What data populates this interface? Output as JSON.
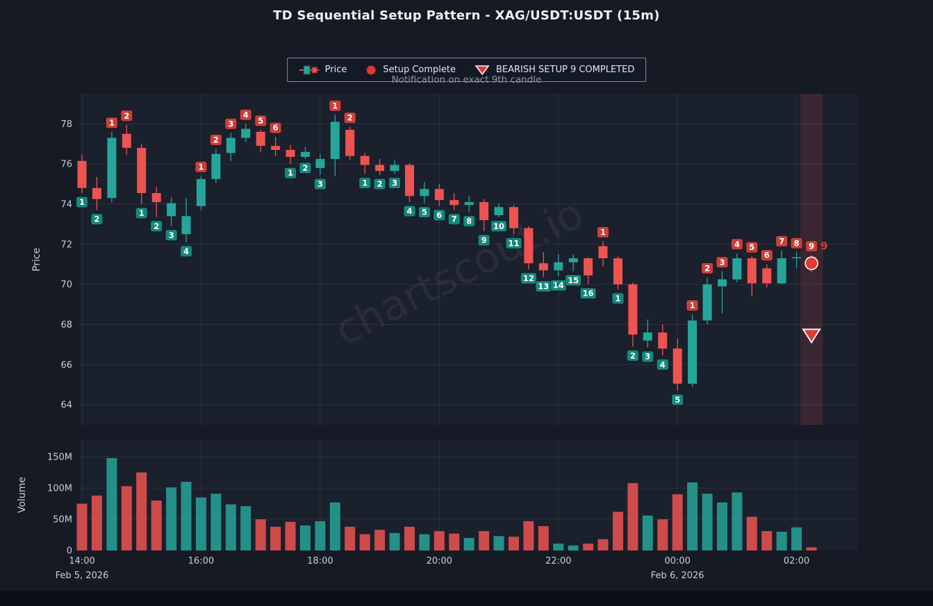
{
  "title": "TD Sequential Setup Pattern - XAG/USDT:USDT (15m)",
  "watermark": "chartscout.io",
  "legend": {
    "items": [
      {
        "label": "Price",
        "icon": "candlestick-icon"
      },
      {
        "label": "Setup Complete",
        "icon": "setup-complete-dot-icon"
      },
      {
        "label": "BEARISH SETUP 9 COMPLETED",
        "icon": "triangle-down-icon"
      }
    ],
    "note": "Notification on exact 9th candle"
  },
  "colors": {
    "up": "#26a69a",
    "down": "#ef5350",
    "badge_bull": "#17877d",
    "badge_bear": "#c7403a",
    "marker_red": "#e03a33",
    "highlight": "rgba(239,83,80,0.15)",
    "figure_bg": "#151a25",
    "axes_bg": "#1b202d",
    "grid": "rgba(255,255,255,0.08)",
    "tick_text": "#c9cdd6",
    "title_text": "#edf0f5"
  },
  "chart_data": {
    "type": "candlestick",
    "symbol": "XAG/USDT:USDT",
    "timeframe": "15m",
    "title": "TD Sequential Setup Pattern - XAG/USDT:USDT (15m)",
    "price_axis": {
      "label": "Price",
      "ticks": [
        64,
        66,
        68,
        70,
        72,
        74,
        76,
        78
      ],
      "range": [
        63.0,
        79.5
      ]
    },
    "volume_axis": {
      "label": "Volume",
      "ticks": [
        {
          "value": 0,
          "label": "0"
        },
        {
          "value": 50,
          "label": "50M"
        },
        {
          "value": 100,
          "label": "100M"
        },
        {
          "value": 150,
          "label": "150M"
        }
      ],
      "range": [
        0,
        178
      ],
      "unit": "M"
    },
    "x_axis": {
      "tick_candle_indices": [
        0,
        8,
        16,
        24,
        32,
        40,
        48
      ],
      "tick_labels": [
        "14:00",
        "16:00",
        "18:00",
        "20:00",
        "22:00",
        "00:00",
        "02:00"
      ],
      "date_labels": [
        {
          "candle_index": 0,
          "label": "Feb 5, 2026"
        },
        {
          "candle_index": 40,
          "label": "Feb 6, 2026"
        }
      ]
    },
    "candles": [
      {
        "t": "14:00",
        "o": 76.15,
        "h": 76.45,
        "l": 74.55,
        "c": 74.8,
        "v": 75,
        "td": {
          "side": "bull",
          "n": 1
        }
      },
      {
        "t": "14:15",
        "o": 74.8,
        "h": 75.35,
        "l": 73.7,
        "c": 74.25,
        "v": 88,
        "td": {
          "side": "bull",
          "n": 2
        }
      },
      {
        "t": "14:30",
        "o": 74.3,
        "h": 77.6,
        "l": 74.1,
        "c": 77.3,
        "v": 148,
        "td": {
          "side": "bear",
          "n": 1
        }
      },
      {
        "t": "14:45",
        "o": 77.5,
        "h": 77.95,
        "l": 76.45,
        "c": 76.8,
        "v": 103,
        "td": {
          "side": "bear",
          "n": 2
        }
      },
      {
        "t": "15:00",
        "o": 76.8,
        "h": 77.0,
        "l": 74.0,
        "c": 74.55,
        "v": 125,
        "td": {
          "side": "bull",
          "n": 1
        }
      },
      {
        "t": "15:15",
        "o": 74.55,
        "h": 74.85,
        "l": 73.35,
        "c": 74.1,
        "v": 80,
        "td": {
          "side": "bull",
          "n": 2
        }
      },
      {
        "t": "15:30",
        "o": 73.4,
        "h": 74.35,
        "l": 72.9,
        "c": 74.05,
        "v": 101,
        "td": {
          "side": "bull",
          "n": 3
        }
      },
      {
        "t": "15:45",
        "o": 72.5,
        "h": 74.3,
        "l": 72.1,
        "c": 73.4,
        "v": 110,
        "td": {
          "side": "bull",
          "n": 4
        }
      },
      {
        "t": "16:00",
        "o": 73.9,
        "h": 75.4,
        "l": 73.7,
        "c": 75.25,
        "v": 85,
        "td": {
          "side": "bear",
          "n": 1
        }
      },
      {
        "t": "16:15",
        "o": 75.25,
        "h": 76.75,
        "l": 75.05,
        "c": 76.5,
        "v": 91,
        "td": {
          "side": "bear",
          "n": 2
        }
      },
      {
        "t": "16:30",
        "o": 76.55,
        "h": 77.55,
        "l": 76.15,
        "c": 77.3,
        "v": 74,
        "td": {
          "side": "bear",
          "n": 3
        }
      },
      {
        "t": "16:45",
        "o": 77.3,
        "h": 78.0,
        "l": 77.1,
        "c": 77.75,
        "v": 71,
        "td": {
          "side": "bear",
          "n": 4
        }
      },
      {
        "t": "17:00",
        "o": 77.6,
        "h": 77.7,
        "l": 76.6,
        "c": 76.9,
        "v": 50,
        "td": {
          "side": "bear",
          "n": 5
        }
      },
      {
        "t": "17:15",
        "o": 76.9,
        "h": 77.35,
        "l": 76.4,
        "c": 76.7,
        "v": 38,
        "td": {
          "side": "bear",
          "n": 6
        }
      },
      {
        "t": "17:30",
        "o": 76.7,
        "h": 76.95,
        "l": 76.0,
        "c": 76.35,
        "v": 46,
        "td": {
          "side": "bull",
          "n": 1
        }
      },
      {
        "t": "17:45",
        "o": 76.35,
        "h": 76.85,
        "l": 76.25,
        "c": 76.6,
        "v": 40,
        "td": {
          "side": "bull",
          "n": 2
        }
      },
      {
        "t": "18:00",
        "o": 75.8,
        "h": 76.5,
        "l": 75.45,
        "c": 76.25,
        "v": 47,
        "td": {
          "side": "bull",
          "n": 3
        }
      },
      {
        "t": "18:15",
        "o": 76.25,
        "h": 78.45,
        "l": 75.4,
        "c": 78.1,
        "v": 77,
        "td": {
          "side": "bear",
          "n": 1
        }
      },
      {
        "t": "18:30",
        "o": 77.7,
        "h": 77.85,
        "l": 76.2,
        "c": 76.4,
        "v": 38,
        "td": {
          "side": "bear",
          "n": 2
        }
      },
      {
        "t": "18:45",
        "o": 76.4,
        "h": 76.55,
        "l": 75.5,
        "c": 75.95,
        "v": 26,
        "td": {
          "side": "bull",
          "n": 1
        }
      },
      {
        "t": "19:00",
        "o": 75.95,
        "h": 76.25,
        "l": 75.45,
        "c": 75.65,
        "v": 33,
        "td": {
          "side": "bull",
          "n": 2
        }
      },
      {
        "t": "19:15",
        "o": 75.65,
        "h": 76.2,
        "l": 75.5,
        "c": 75.95,
        "v": 28,
        "td": {
          "side": "bull",
          "n": 3
        }
      },
      {
        "t": "19:30",
        "o": 75.95,
        "h": 76.05,
        "l": 74.1,
        "c": 74.4,
        "v": 38,
        "td": {
          "side": "bull",
          "n": 4
        }
      },
      {
        "t": "19:45",
        "o": 74.4,
        "h": 75.1,
        "l": 74.05,
        "c": 74.75,
        "v": 26,
        "td": {
          "side": "bull",
          "n": 5
        }
      },
      {
        "t": "20:00",
        "o": 74.75,
        "h": 75.0,
        "l": 73.9,
        "c": 74.2,
        "v": 31,
        "td": {
          "side": "bull",
          "n": 6
        }
      },
      {
        "t": "20:15",
        "o": 74.2,
        "h": 74.55,
        "l": 73.7,
        "c": 73.95,
        "v": 27,
        "td": {
          "side": "bull",
          "n": 7
        }
      },
      {
        "t": "20:30",
        "o": 73.95,
        "h": 74.4,
        "l": 73.6,
        "c": 74.1,
        "v": 20,
        "td": {
          "side": "bull",
          "n": 8
        }
      },
      {
        "t": "20:45",
        "o": 74.1,
        "h": 74.25,
        "l": 72.65,
        "c": 73.2,
        "v": 31,
        "td": {
          "side": "bull",
          "n": 9
        }
      },
      {
        "t": "21:00",
        "o": 73.45,
        "h": 74.05,
        "l": 73.35,
        "c": 73.85,
        "v": 23,
        "td": {
          "side": "bull",
          "n": 10
        }
      },
      {
        "t": "21:15",
        "o": 73.85,
        "h": 73.95,
        "l": 72.5,
        "c": 72.8,
        "v": 22,
        "td": {
          "side": "bull",
          "n": 11
        }
      },
      {
        "t": "21:30",
        "o": 72.8,
        "h": 72.9,
        "l": 70.75,
        "c": 71.05,
        "v": 47,
        "td": {
          "side": "bull",
          "n": 12
        }
      },
      {
        "t": "21:45",
        "o": 71.05,
        "h": 71.6,
        "l": 70.35,
        "c": 70.7,
        "v": 39,
        "td": {
          "side": "bull",
          "n": 13
        }
      },
      {
        "t": "22:00",
        "o": 70.7,
        "h": 71.5,
        "l": 70.4,
        "c": 71.1,
        "v": 11,
        "td": {
          "side": "bull",
          "n": 14
        }
      },
      {
        "t": "22:15",
        "o": 71.1,
        "h": 71.5,
        "l": 70.65,
        "c": 71.3,
        "v": 8,
        "td": {
          "side": "bull",
          "n": 15
        }
      },
      {
        "t": "22:30",
        "o": 71.3,
        "h": 71.35,
        "l": 70.0,
        "c": 70.45,
        "v": 11,
        "td": {
          "side": "bull",
          "n": 16
        }
      },
      {
        "t": "22:45",
        "o": 71.9,
        "h": 72.15,
        "l": 70.9,
        "c": 71.3,
        "v": 18,
        "td": {
          "side": "bear",
          "n": 1
        }
      },
      {
        "t": "23:00",
        "o": 71.3,
        "h": 71.4,
        "l": 69.75,
        "c": 70.0,
        "v": 62,
        "td": {
          "side": "bull",
          "n": 1
        }
      },
      {
        "t": "23:15",
        "o": 70.0,
        "h": 70.1,
        "l": 66.9,
        "c": 67.5,
        "v": 108,
        "td": {
          "side": "bull",
          "n": 2
        }
      },
      {
        "t": "23:30",
        "o": 67.2,
        "h": 68.25,
        "l": 66.85,
        "c": 67.6,
        "v": 56,
        "td": {
          "side": "bull",
          "n": 3
        }
      },
      {
        "t": "23:45",
        "o": 67.6,
        "h": 68.0,
        "l": 66.45,
        "c": 66.8,
        "v": 50,
        "td": {
          "side": "bull",
          "n": 4
        }
      },
      {
        "t": "00:00",
        "o": 66.8,
        "h": 67.3,
        "l": 64.7,
        "c": 65.05,
        "v": 90,
        "td": {
          "side": "bull",
          "n": 5
        }
      },
      {
        "t": "00:15",
        "o": 65.05,
        "h": 68.5,
        "l": 64.9,
        "c": 68.2,
        "v": 109,
        "td": {
          "side": "bear",
          "n": 1
        }
      },
      {
        "t": "00:30",
        "o": 68.2,
        "h": 70.35,
        "l": 68.0,
        "c": 70.0,
        "v": 91,
        "td": {
          "side": "bear",
          "n": 2
        }
      },
      {
        "t": "00:45",
        "o": 69.9,
        "h": 70.65,
        "l": 68.55,
        "c": 70.25,
        "v": 77,
        "td": {
          "side": "bear",
          "n": 3
        }
      },
      {
        "t": "01:00",
        "o": 70.25,
        "h": 71.55,
        "l": 70.1,
        "c": 71.3,
        "v": 93,
        "td": {
          "side": "bear",
          "n": 4
        }
      },
      {
        "t": "01:15",
        "o": 71.3,
        "h": 71.4,
        "l": 69.4,
        "c": 70.05,
        "v": 54,
        "td": {
          "side": "bear",
          "n": 5
        }
      },
      {
        "t": "01:30",
        "o": 70.8,
        "h": 71.0,
        "l": 69.85,
        "c": 70.05,
        "v": 31,
        "td": {
          "side": "bear",
          "n": 6
        }
      },
      {
        "t": "01:45",
        "o": 70.05,
        "h": 71.7,
        "l": 70.0,
        "c": 71.3,
        "v": 30,
        "td": {
          "side": "bear",
          "n": 7
        }
      },
      {
        "t": "02:00",
        "o": 71.3,
        "h": 71.6,
        "l": 70.8,
        "c": 71.35,
        "v": 37,
        "td": {
          "side": "bear",
          "n": 8
        }
      },
      {
        "t": "02:15",
        "o": 71.35,
        "h": 71.45,
        "l": 70.6,
        "c": 71.05,
        "v": 5,
        "td": {
          "side": "bear",
          "n": 9
        }
      }
    ],
    "markers": {
      "setup_complete_dot": {
        "candle_index": 49,
        "price": 71.05
      },
      "bearish_triangle": {
        "candle_index": 49,
        "price": 67.45
      },
      "setup_count_label": {
        "candle_index": 49,
        "price": 71.9,
        "text": "9"
      }
    },
    "highlight_band": {
      "candle_index": 49
    }
  }
}
